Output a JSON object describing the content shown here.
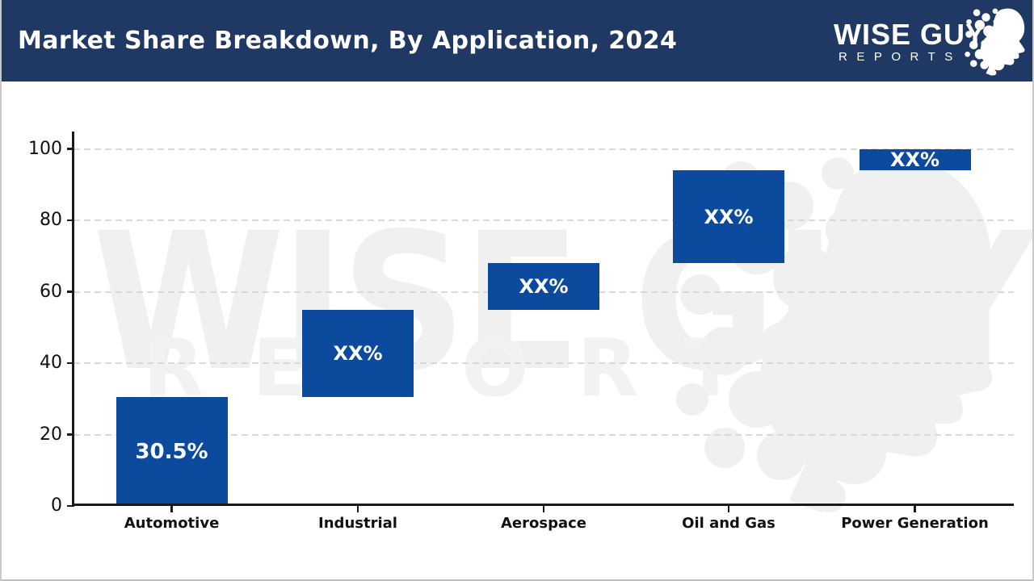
{
  "header": {
    "title": "Market Share Breakdown, By Application, 2024",
    "logo": {
      "primary": "WISE GUY",
      "secondary": "REPORTS"
    }
  },
  "watermark": {
    "line1": "WISE GUY",
    "line2": "REPORTS"
  },
  "colors": {
    "header_bg": "#203864",
    "bar": "#0c4a9e",
    "bar_label": "#ffffff",
    "gridline": "#d9d9d9",
    "axis": "#1a1a1a",
    "watermark": "#f0f0f0",
    "page_border": "#c9c9c9"
  },
  "chart_data": {
    "type": "bar",
    "subtype": "waterfall-market-share",
    "title": "Market Share Breakdown, By Application, 2024",
    "xlabel": "",
    "ylabel": "",
    "categories": [
      "Automotive",
      "Industrial",
      "Aerospace",
      "Oil and Gas",
      "Power Generation"
    ],
    "segments": [
      {
        "category": "Automotive",
        "start": 0,
        "end": 30.5,
        "value": 30.5,
        "label": "30.5%"
      },
      {
        "category": "Industrial",
        "start": 30.5,
        "end": 55,
        "value": 24.5,
        "label": "XX%"
      },
      {
        "category": "Aerospace",
        "start": 55,
        "end": 68,
        "value": 13,
        "label": "XX%"
      },
      {
        "category": "Oil and Gas",
        "start": 68,
        "end": 94,
        "value": 26,
        "label": "XX%"
      },
      {
        "category": "Power Generation",
        "start": 94,
        "end": 100,
        "value": 6,
        "label": "XX%"
      }
    ],
    "yticks": [
      0,
      20,
      40,
      60,
      80,
      100
    ],
    "ylim": [
      0,
      104.5
    ],
    "grid": "horizontal-dashed",
    "legend": "none"
  }
}
